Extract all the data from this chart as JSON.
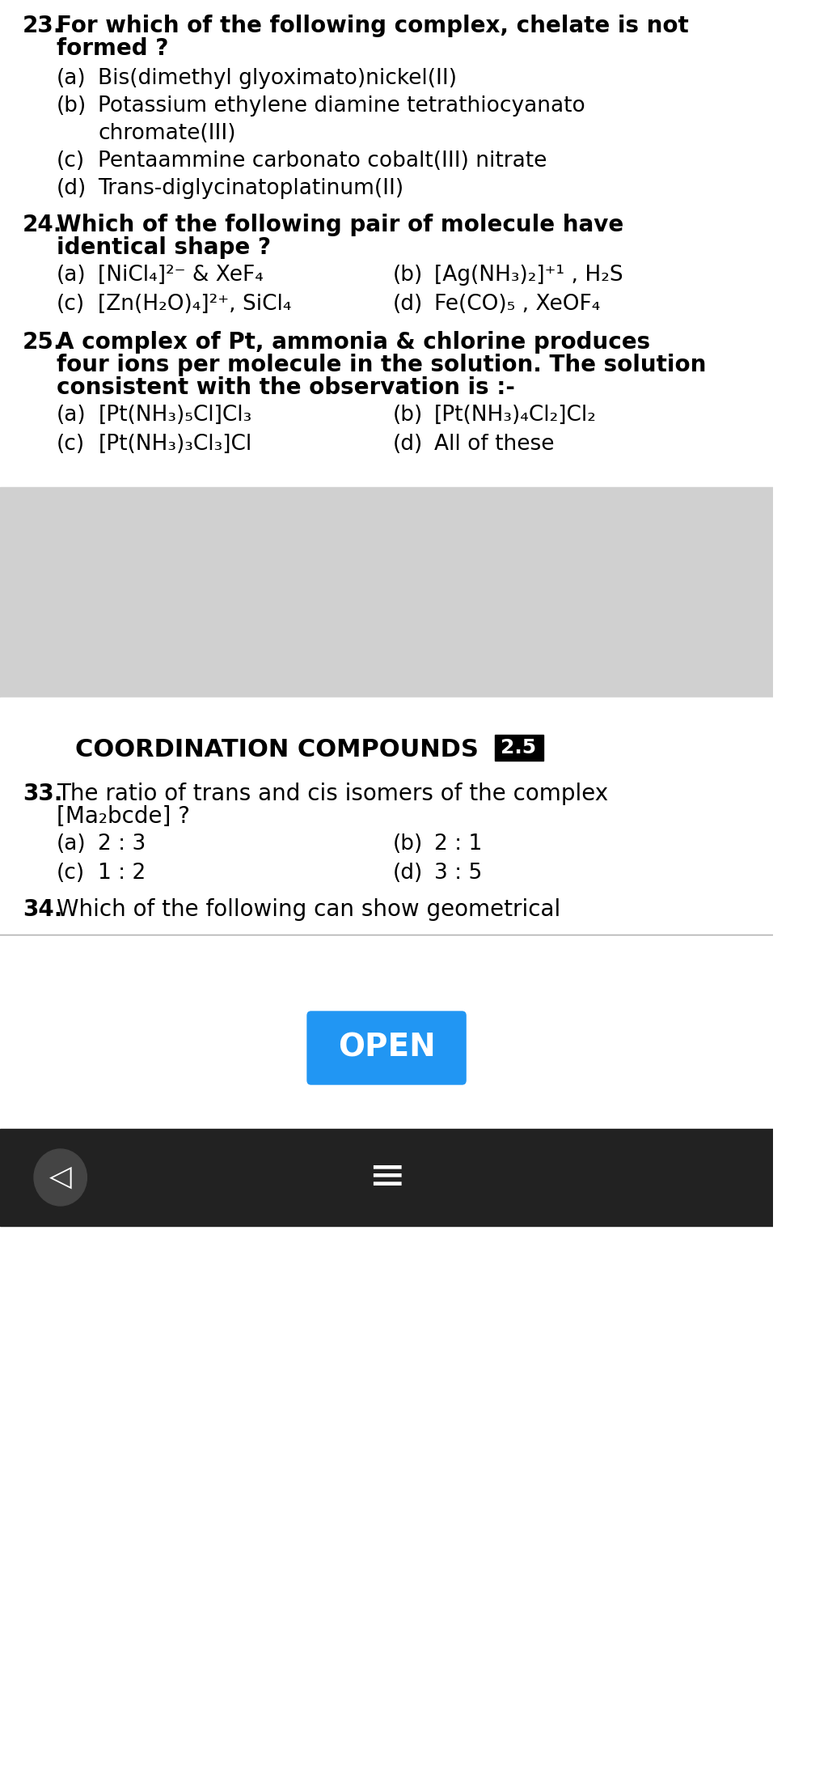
{
  "bg_color": "#ffffff",
  "gray_bg_color": "#d0d0d0",
  "questions": [
    {
      "number": "23.",
      "bold": true,
      "text": "For which of the following complex, chelate is not\nformed ?",
      "options": [
        {
          "label": "(a)",
          "text": "Bis(dimethyl glyoximato)nickel(II)"
        },
        {
          "label": "(b)",
          "text": "Potassium ethylene diamine tetrathiocyanato\n        chromate(III)"
        },
        {
          "label": "(c)",
          "text": "Pentaammine carbonato cobalt(III) nitrate"
        },
        {
          "label": "(d)",
          "text": "Trans-diglycinatoplatinum(II)"
        }
      ]
    },
    {
      "number": "24.",
      "bold": true,
      "text": "Which of the following pair of molecule have\nidentical shape ?",
      "options_inline": [
        {
          "label": "(a)",
          "text": "[NiCl₄]²⁻ & XeF₄",
          "col": 0
        },
        {
          "label": "(b)",
          "text": "[Ag(NH₃)₂]⁺¹ , H₂S",
          "col": 1
        },
        {
          "label": "(c)",
          "text": "[Zn(H₂O)₄]²⁺, SiCl₄",
          "col": 0
        },
        {
          "label": "(d)",
          "text": "Fe(CO)₅ , XeOF₄",
          "col": 1
        }
      ]
    },
    {
      "number": "25.",
      "bold": true,
      "text": "A complex of Pt, ammonia & chlorine produces\nfour ions per molecule in the solution. The solution\nconsistent with the observation is :-",
      "options_inline": [
        {
          "label": "(a)",
          "text": "[Pt(NH₃)₅Cl]Cl₃",
          "col": 0
        },
        {
          "label": "(b)",
          "text": "[Pt(NH₃)₄Cl₂]Cl₂",
          "col": 1
        },
        {
          "label": "(c)",
          "text": "[Pt(NH₃)₃Cl₃]Cl",
          "col": 0
        },
        {
          "label": "(d)",
          "text": "All of these",
          "col": 1
        }
      ]
    }
  ],
  "section_title": "COORDINATION COMPOUNDS",
  "section_badge": "2.5",
  "section_questions": [
    {
      "number": "33.",
      "bold": true,
      "text": "The ratio of trans and cis isomers of the complex\n[Ma₂bcde] ?",
      "options_inline": [
        {
          "label": "(a)",
          "text": "2 : 3",
          "col": 0
        },
        {
          "label": "(b)",
          "text": "2 : 1",
          "col": 1
        },
        {
          "label": "(c)",
          "text": "1 : 2",
          "col": 0
        },
        {
          "label": "(d)",
          "text": "3 : 5",
          "col": 1
        }
      ]
    },
    {
      "number": "34.",
      "bold": true,
      "text": "Which of the following can show geometrical"
    }
  ],
  "open_button_color": "#2196f3",
  "open_button_text": "OPEN",
  "footer_bg": "#222222"
}
